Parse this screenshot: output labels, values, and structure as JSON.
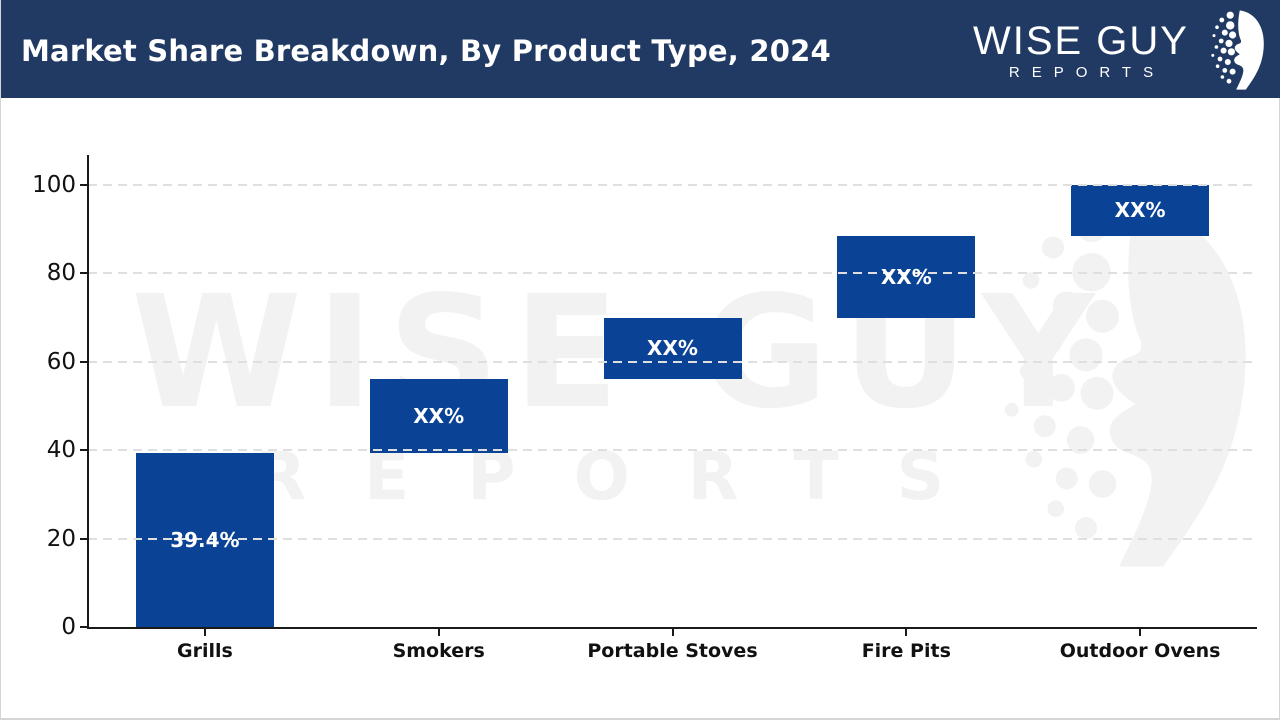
{
  "header": {
    "title": "Market Share Breakdown, By Product Type, 2024",
    "logo": {
      "line1": "WISE GUY",
      "line2": "REPORTS"
    }
  },
  "watermark": {
    "line1": "WISE GUY",
    "line2": "REPORTS"
  },
  "colors": {
    "header_bg": "#213a64",
    "bar": "#0a4296",
    "bar_label": "#ffffff",
    "axis": "#1a1a1a",
    "gridline": "#dfdfdf",
    "watermark": "#f2f2f2"
  },
  "chart_data": {
    "type": "bar",
    "subtype": "waterfall",
    "title": "Market Share Breakdown, By Product Type, 2024",
    "categories": [
      "Grills",
      "Smokers",
      "Portable Stoves",
      "Fire Pits",
      "Outdoor Ovens"
    ],
    "segments": [
      {
        "category": "Grills",
        "start": 0,
        "end": 39.4,
        "value": 39.4,
        "label": "39.4%"
      },
      {
        "category": "Smokers",
        "start": 39.4,
        "end": 56.1,
        "value": 16.7,
        "label": "XX%"
      },
      {
        "category": "Portable Stoves",
        "start": 56.1,
        "end": 70.0,
        "value": 13.9,
        "label": "XX%"
      },
      {
        "category": "Fire Pits",
        "start": 70.0,
        "end": 88.5,
        "value": 18.5,
        "label": "XX%"
      },
      {
        "category": "Outdoor Ovens",
        "start": 88.5,
        "end": 100.0,
        "value": 11.5,
        "label": "XX%"
      }
    ],
    "xlabel": "",
    "ylabel": "",
    "yticks": [
      0,
      20,
      40,
      60,
      80,
      100
    ],
    "ylim": [
      0,
      107
    ],
    "grid": "horizontal-dashed",
    "legend": "none"
  }
}
